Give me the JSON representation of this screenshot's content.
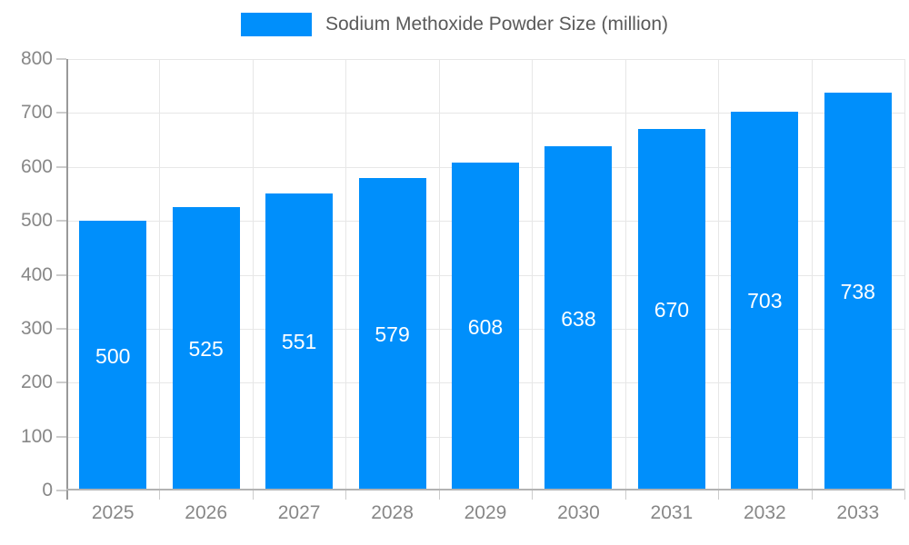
{
  "chart_data": {
    "type": "bar",
    "title": "Sodium Methoxide Powder Size (million)",
    "categories": [
      "2025",
      "2026",
      "2027",
      "2028",
      "2029",
      "2030",
      "2031",
      "2032",
      "2033"
    ],
    "values": [
      500,
      525,
      551,
      579,
      608,
      638,
      670,
      703,
      738
    ],
    "xlabel": "",
    "ylabel": "",
    "ylim": [
      0,
      800
    ],
    "ytick_step": 100,
    "grid": true,
    "legend_position": "top",
    "bar_labels_inside": true
  },
  "legend": {
    "label": "Sodium Methoxide Powder Size (million)"
  },
  "colors": {
    "bar": "#008FFB",
    "bar_label": "#ffffff",
    "grid": "#e7e7e7",
    "y_axis_line": "#999999",
    "x_axis_line": "#b3b3b3",
    "tick": "#cccccc",
    "axis_label_text": "#878787",
    "legend_text": "#5a5a5a"
  }
}
